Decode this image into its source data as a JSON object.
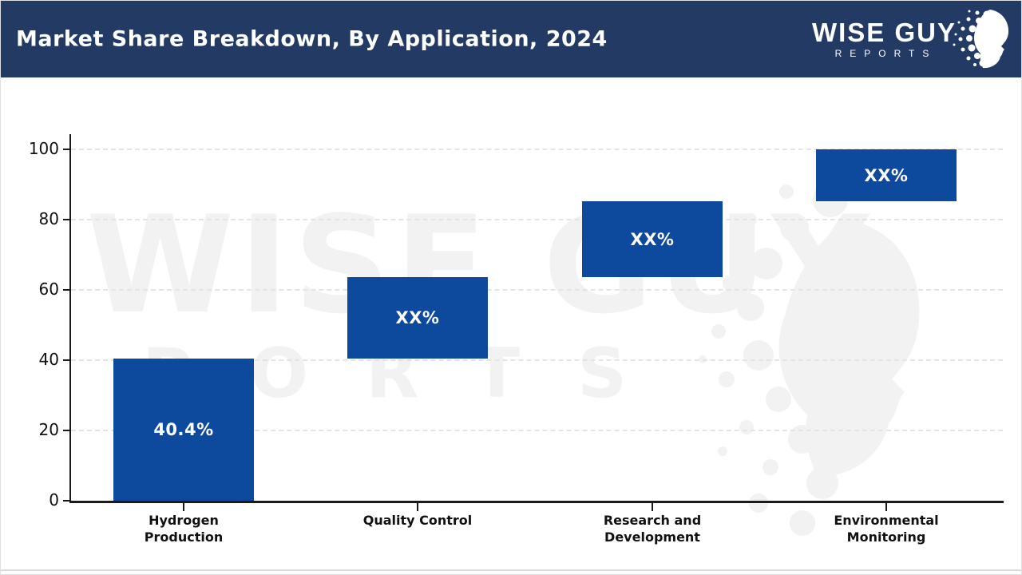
{
  "header": {
    "title": "Market Share Breakdown, By Application, 2024",
    "brand": {
      "line1": "WISE GUY",
      "line2": "REPORTS"
    }
  },
  "watermark": {
    "line1": "WISE GUY",
    "line2": "PORTS"
  },
  "chart_data": {
    "type": "bar",
    "subtype": "waterfall",
    "title": "Market Share Breakdown, By Application, 2024",
    "categories": [
      "Hydrogen\nProduction",
      "Quality Control",
      "Research and\nDevelopment",
      "Environmental\nMonitoring"
    ],
    "segments": [
      {
        "category": "Hydrogen Production",
        "start": 0,
        "end": 40.4,
        "label": "40.4%"
      },
      {
        "category": "Quality Control",
        "start": 40.4,
        "end": 63.6,
        "label": "XX%"
      },
      {
        "category": "Research and Development",
        "start": 63.6,
        "end": 85.2,
        "label": "XX%"
      },
      {
        "category": "Environmental Monitoring",
        "start": 85.2,
        "end": 100,
        "label": "XX%"
      }
    ],
    "ylabel": "",
    "xlabel": "",
    "ylim": [
      0,
      100
    ],
    "yticks": [
      0,
      20,
      40,
      60,
      80,
      100
    ],
    "grid": "horizontal-dashed",
    "legend": "none",
    "bar_color": "#0d4a9e",
    "bar_label_color": "#ffffff",
    "header_color": "#223a64",
    "axis_color": "#1a1a1a"
  }
}
